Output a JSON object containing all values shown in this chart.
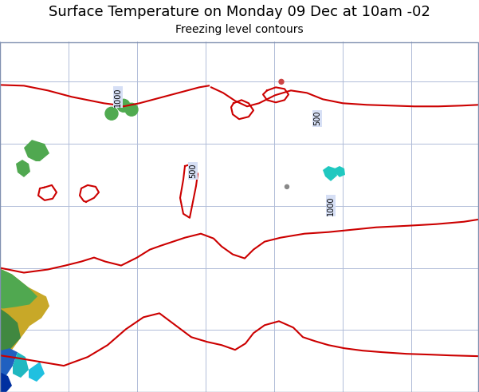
{
  "title": "Surface Temperature on Monday 09 Dec at 10am -02",
  "subtitle": "Freezing level contours",
  "title_fontsize": 13,
  "subtitle_fontsize": 10,
  "bg_map_color": "#d6dff5",
  "bg_title_color": "#ffffff",
  "grid_color": "#b0bcd8",
  "contour_color": "#cc0000",
  "figsize": [
    6.01,
    4.91
  ],
  "dpi": 100,
  "small_circles": [
    [
      155,
      360,
      8
    ],
    [
      140,
      350,
      8
    ],
    [
      165,
      355,
      8
    ]
  ]
}
